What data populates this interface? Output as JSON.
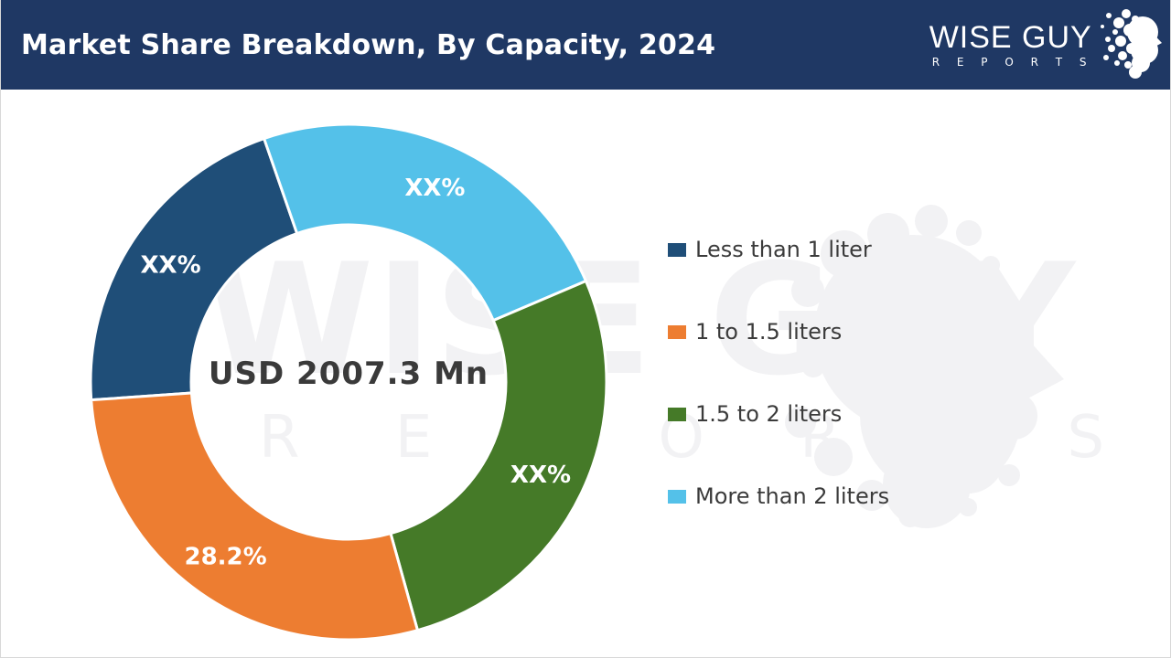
{
  "header": {
    "title": "Market Share Breakdown, By Capacity, 2024",
    "logo": {
      "name": "WISE GUY",
      "subtitle": "R E P O R T S"
    }
  },
  "watermark": {
    "line1": "WISE GUY",
    "line2": "R E P O R T S"
  },
  "chart_data": {
    "type": "donut",
    "center_label": "USD 2007.3 Mn",
    "start_angle_deg": 266,
    "direction": "clockwise",
    "outer_radius_px": 282,
    "inner_radius_px": 172,
    "segments": [
      {
        "id": "less-than-1-liter",
        "label": "Less than 1 liter",
        "value_pct": 20.8,
        "display": "XX%",
        "color": "#1F4E78"
      },
      {
        "id": "more-than-2-liters",
        "label": "More than 2 liters",
        "value_pct": 23.9,
        "display": "XX%",
        "color": "#54C1E9"
      },
      {
        "id": "1-5-to-2-liters",
        "label": "1.5 to 2 liters",
        "value_pct": 27.1,
        "display": "XX%",
        "color": "#457A28"
      },
      {
        "id": "1-to-1-5-liters",
        "label": "1 to 1.5 liters",
        "value_pct": 28.2,
        "display": "28.2%",
        "color": "#ED7D31"
      }
    ]
  },
  "legend": {
    "items": [
      {
        "label": "Less than 1 liter",
        "color": "#1F4E78"
      },
      {
        "label": "1 to 1.5 liters",
        "color": "#ED7D31"
      },
      {
        "label": "1.5 to 2 liters",
        "color": "#457A28"
      },
      {
        "label": "More than 2 liters",
        "color": "#54C1E9"
      }
    ]
  },
  "colors": {
    "header_bg": "#1F3864",
    "text_dark": "#3A3A3A",
    "watermark": "#F2F2F4",
    "border": "#D8D8D8"
  }
}
